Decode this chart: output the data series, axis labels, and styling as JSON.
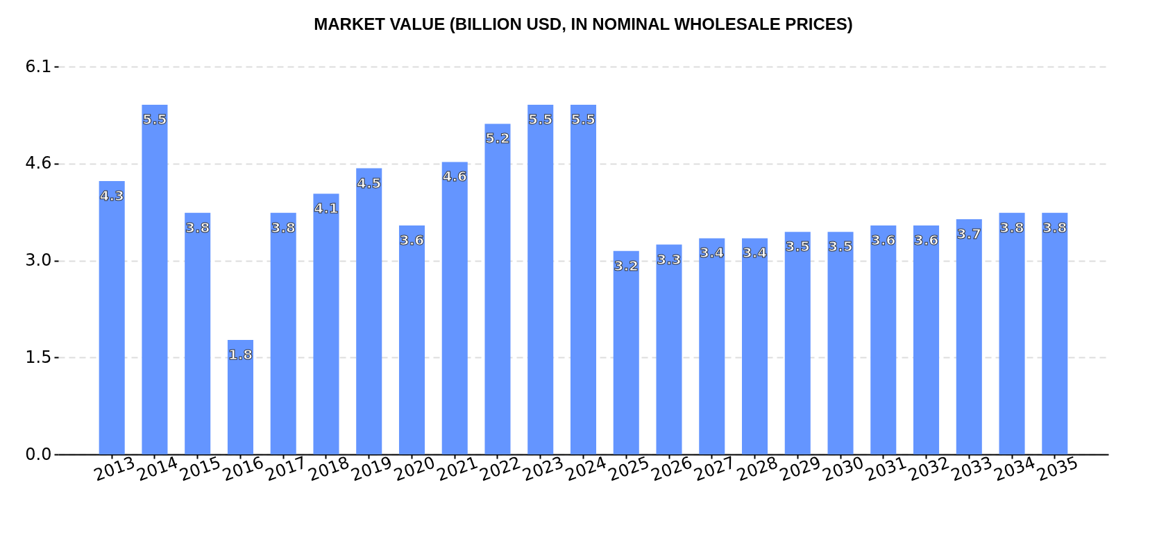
{
  "chart_data": {
    "type": "bar",
    "title": "MARKET VALUE (BILLION USD, IN NOMINAL WHOLESALE PRICES)",
    "categories": [
      "2013",
      "2014",
      "2015",
      "2016",
      "2017",
      "2018",
      "2019",
      "2020",
      "2021",
      "2022",
      "2023",
      "2024",
      "2025",
      "2026",
      "2027",
      "2028",
      "2029",
      "2030",
      "2031",
      "2032",
      "2033",
      "2034",
      "2035"
    ],
    "values": [
      4.3,
      5.5,
      3.8,
      1.8,
      3.8,
      4.1,
      4.5,
      3.6,
      4.6,
      5.2,
      5.5,
      5.5,
      3.2,
      3.3,
      3.4,
      3.4,
      3.5,
      3.5,
      3.6,
      3.6,
      3.7,
      3.8,
      3.8
    ],
    "color": "#6495ff",
    "ylim": [
      0,
      6.1
    ],
    "yticks": [
      {
        "value": 0,
        "label": "0.0"
      },
      {
        "value": 1.525,
        "label": "1.5"
      },
      {
        "value": 3.05,
        "label": "3.0"
      },
      {
        "value": 4.575,
        "label": "4.6"
      },
      6.1
    ],
    "grid": "y",
    "data_labels": true
  }
}
